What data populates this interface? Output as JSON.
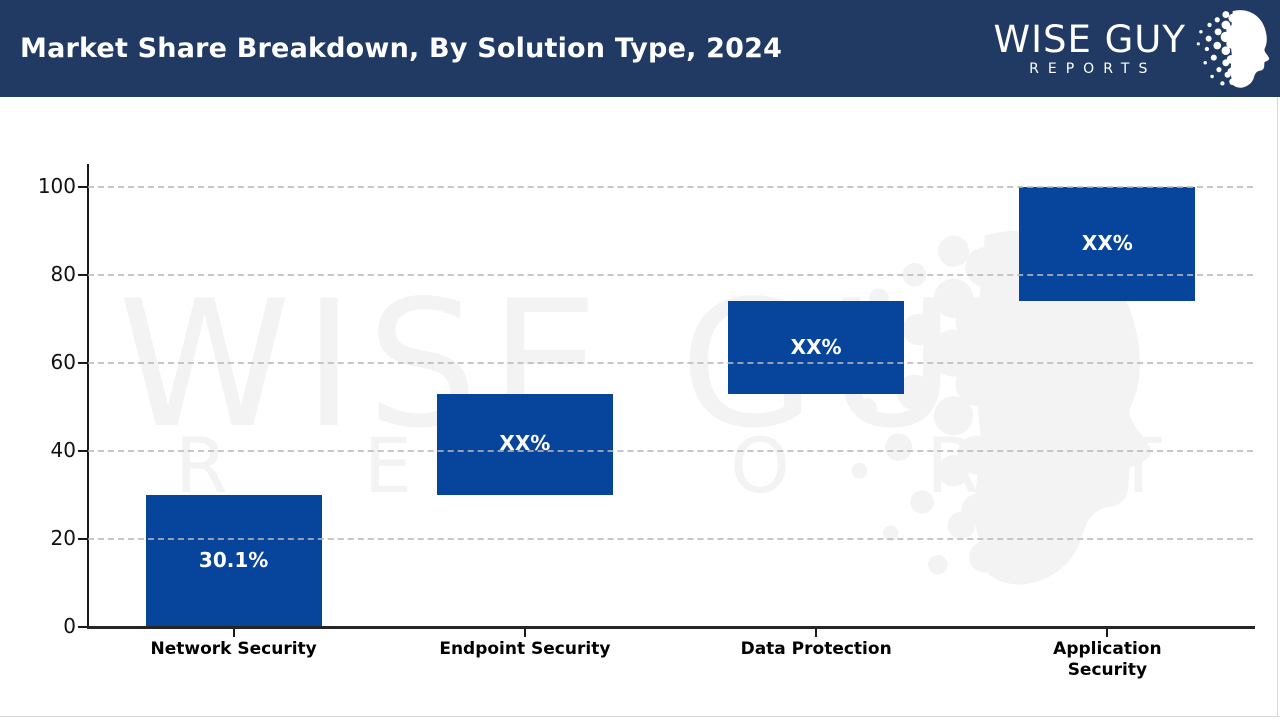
{
  "header": {
    "title": "Market Share Breakdown, By Solution Type, 2024",
    "logo": {
      "line1": "WISE GUY",
      "line2": "REPORTS"
    }
  },
  "watermark": {
    "line1": "WISE GUY",
    "line2": "R E P O R T S"
  },
  "colors": {
    "header_bg": "#213a64",
    "bar": "#07449c",
    "axis": "#262626",
    "grid": "#b9b9b9",
    "tick_label": "#111111",
    "bar_label": "#ffffff",
    "watermark": "#f3f3f3"
  },
  "chart_data": {
    "type": "bar",
    "subtype": "waterfall",
    "title": "Market Share Breakdown, By Solution Type, 2024",
    "categories": [
      "Network Security",
      "Endpoint Security",
      "Data Protection",
      "Application\nSecurity"
    ],
    "segments": [
      {
        "category": "Network Security",
        "start": 0,
        "end": 30.1,
        "label": "30.1%"
      },
      {
        "category": "Endpoint Security",
        "start": 30.1,
        "end": 53,
        "label": "XX%"
      },
      {
        "category": "Data Protection",
        "start": 53,
        "end": 74,
        "label": "XX%"
      },
      {
        "category": "Application Security",
        "start": 74,
        "end": 100,
        "label": "XX%"
      }
    ],
    "xlabel": "",
    "ylabel": "",
    "ylim": [
      0,
      100
    ],
    "yticks": [
      0,
      20,
      40,
      60,
      80,
      100
    ],
    "grid": "horizontal dashed, drawn above bars",
    "legend": "none"
  }
}
